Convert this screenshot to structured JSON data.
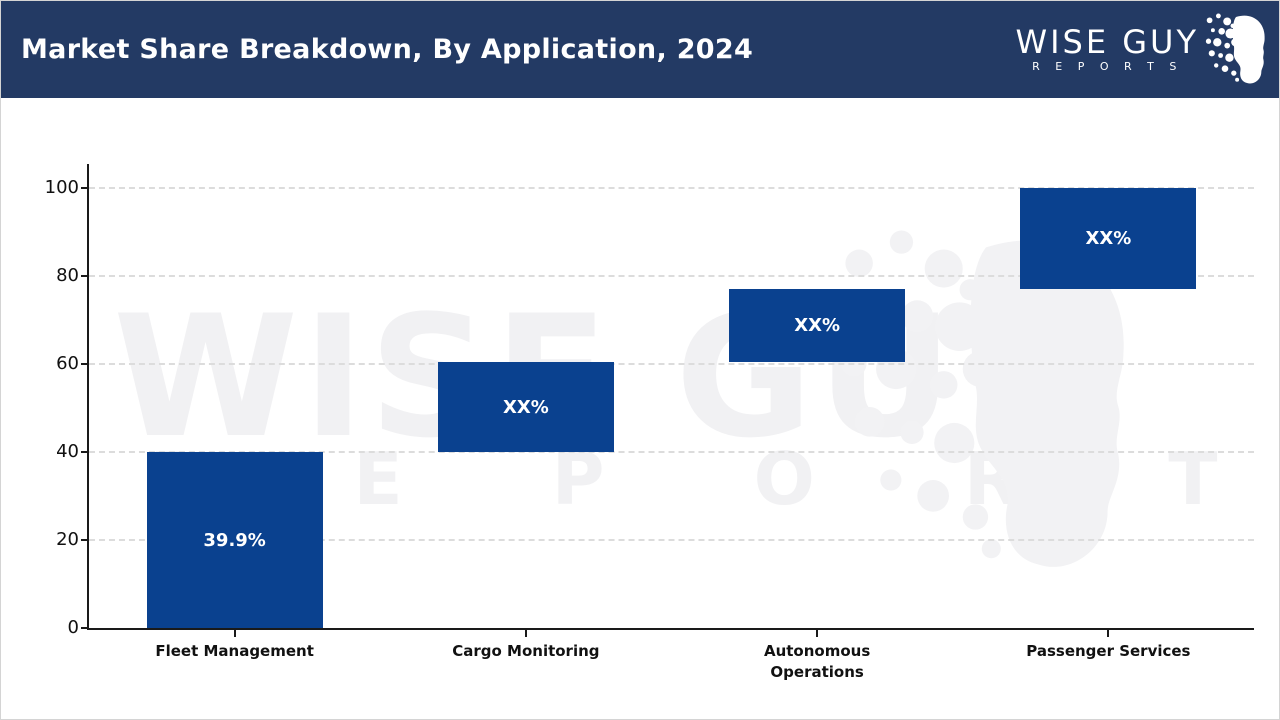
{
  "header": {
    "title": "Market Share Breakdown, By Application, 2024",
    "logo": {
      "name": "WISE GUY",
      "sub": "R E P O R T S"
    }
  },
  "watermark": {
    "line1": "WISE GUY",
    "line2": "R E P O R T S"
  },
  "chart_data": {
    "type": "bar",
    "subtype": "waterfall-floating-bars",
    "title": "Market Share Breakdown, By Application, 2024",
    "categories": [
      "Fleet Management",
      "Cargo Monitoring",
      "Autonomous Operations",
      "Passenger Services"
    ],
    "segments": [
      {
        "category": "Fleet Management",
        "start": 0,
        "end": 39.9,
        "label": "39.9%"
      },
      {
        "category": "Cargo Monitoring",
        "start": 39.9,
        "end": 60.5,
        "label": "XX%"
      },
      {
        "category": "Autonomous Operations",
        "start": 60.5,
        "end": 77.1,
        "label": "XX%"
      },
      {
        "category": "Passenger Services",
        "start": 77.1,
        "end": 100,
        "label": "XX%"
      }
    ],
    "y_ticks": [
      0,
      20,
      40,
      60,
      80,
      100
    ],
    "ylim": [
      0,
      105
    ],
    "xlabel": "",
    "ylabel": "",
    "grid": "horizontal-dashed",
    "legend": "none",
    "bar_color": "#0a418f",
    "bar_label_color": "#ffffff",
    "axis_color": "#1a1a1a",
    "grid_color": "#dcdcdc"
  }
}
